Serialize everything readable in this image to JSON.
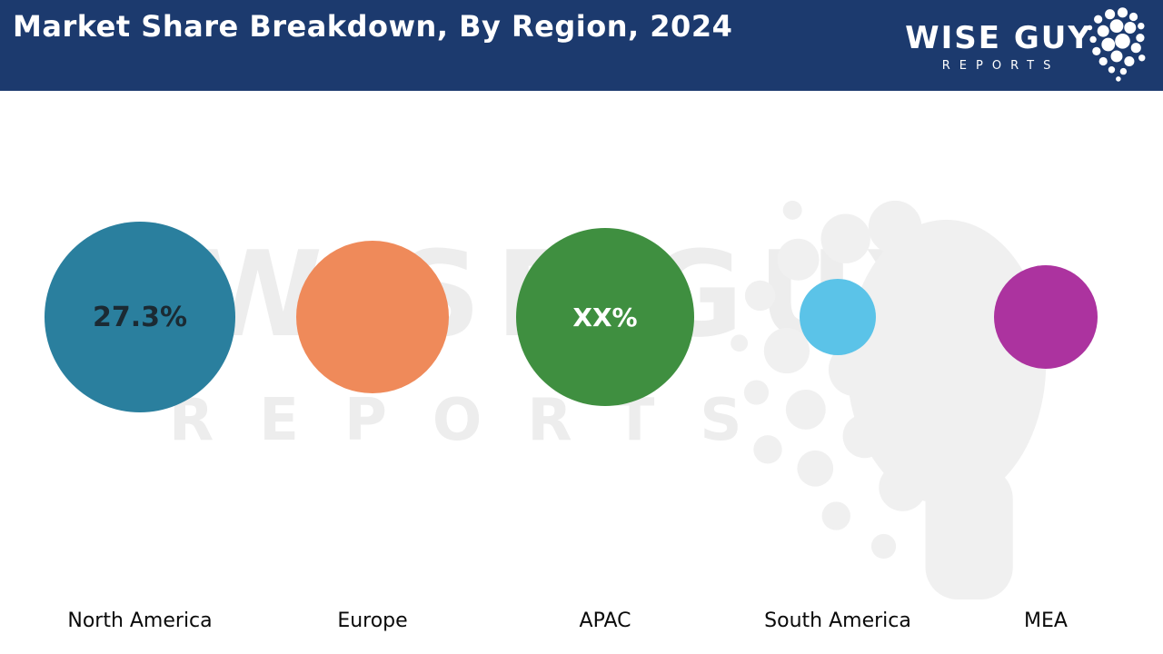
{
  "header": {
    "title": "Market Share Breakdown, By Region, 2024",
    "logo": {
      "line1": "WISE GUY",
      "line2": "REPORTS",
      "icon": "dot-matrix-head-profile-icon"
    }
  },
  "watermark": {
    "line1": "WISE GUY",
    "line2": "REPORTS",
    "icon": "dot-matrix-head-profile-watermark"
  },
  "colors": {
    "header_bg": "#1c3a6e",
    "watermark": "#ededed",
    "background": "#ffffff"
  },
  "chart_data": {
    "type": "bubble",
    "title": "Market Share Breakdown, By Region, 2024",
    "xlabel": "",
    "ylabel": "",
    "grid": false,
    "legend_position": "none",
    "categories": [
      "North America",
      "Europe",
      "APAC",
      "South America",
      "MEA"
    ],
    "bubbles": [
      {
        "label": "North America",
        "value_label": "27.3%",
        "value": 27.3,
        "color": "#2a7f9e",
        "radius_px": 105,
        "label_color": "#1b2a33"
      },
      {
        "label": "Europe",
        "value_label": "",
        "value": null,
        "color": "#ef8a5a",
        "radius_px": 84,
        "label_color": "#ffffff"
      },
      {
        "label": "APAC",
        "value_label": "XX%",
        "value": null,
        "color": "#3f8f40",
        "radius_px": 98,
        "label_color": "#ffffff"
      },
      {
        "label": "South America",
        "value_label": "",
        "value": null,
        "color": "#5bc3e8",
        "radius_px": 42,
        "label_color": "#ffffff"
      },
      {
        "label": "MEA",
        "value_label": "",
        "value": null,
        "color": "#ac339f",
        "radius_px": 57,
        "label_color": "#ffffff"
      }
    ]
  }
}
